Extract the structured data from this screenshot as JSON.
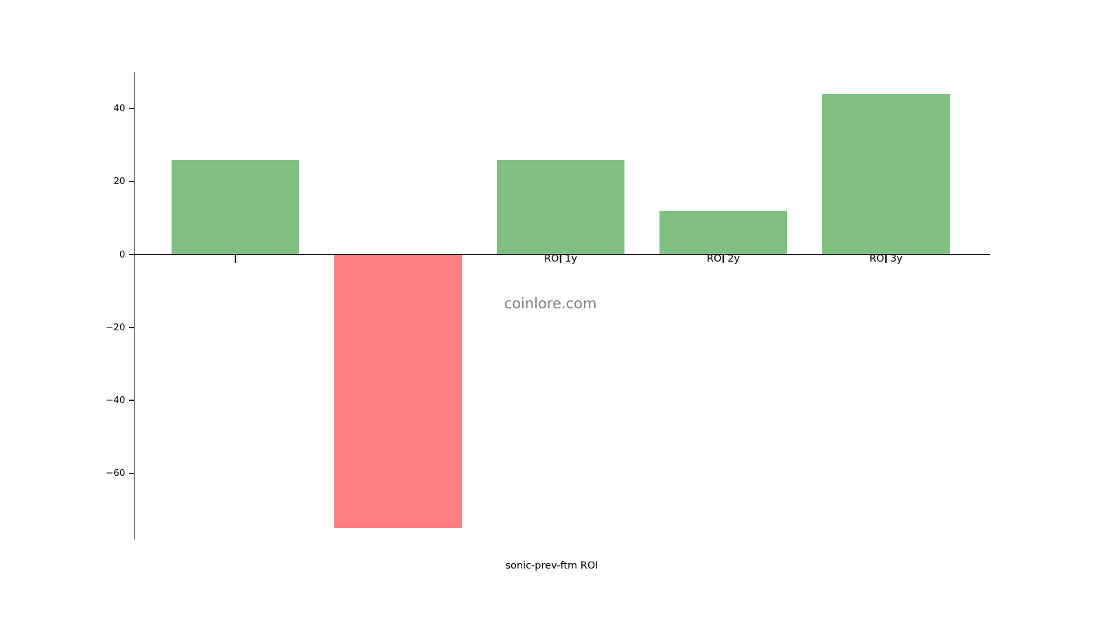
{
  "watermark": {
    "text": "coinlore.com",
    "color": "#808080"
  },
  "chart_data": {
    "type": "bar",
    "title": "",
    "xlabel": "sonic-prev-ftm ROI",
    "ylabel": "",
    "categories": [
      "",
      "",
      "ROI 1y",
      "ROI 2y",
      "ROI 3y"
    ],
    "values": [
      26,
      -75,
      26,
      12,
      44
    ],
    "yticks": [
      40,
      20,
      0,
      -20,
      -40,
      -60
    ],
    "ylim": [
      -78,
      50
    ],
    "grid": false,
    "legend": "none",
    "colors": {
      "positive": "#7fbf7f",
      "negative": "#ff7f7f",
      "axis": "#000000",
      "text": "#000000"
    }
  }
}
